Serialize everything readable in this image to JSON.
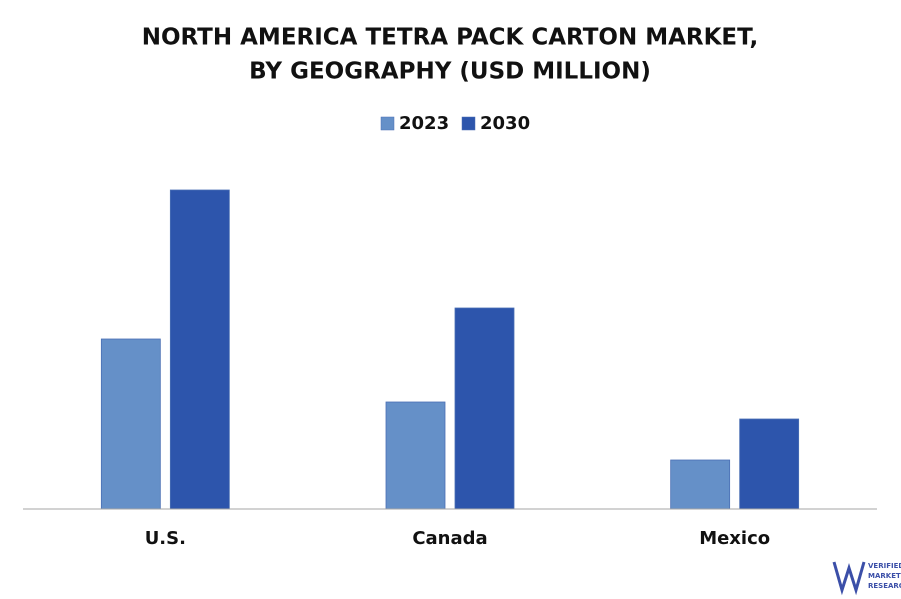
{
  "chart_data": {
    "type": "bar",
    "title": [
      "NORTH AMERICA TETRA PACK CARTON MARKET,",
      "BY GEOGRAPHY  (USD MILLION)"
    ],
    "categories": [
      "U.S.",
      "Canada",
      "Mexico"
    ],
    "series": [
      {
        "name": "2023",
        "color": "#6590c8",
        "values": [
          170,
          107,
          49
        ]
      },
      {
        "name": "2030",
        "color": "#2d55ac",
        "values": [
          319,
          201,
          90
        ]
      }
    ],
    "ylim": [
      0,
      350
    ],
    "legend": "top",
    "logo": [
      "VERIFIED",
      "MARKET",
      "RESEARCH"
    ]
  }
}
